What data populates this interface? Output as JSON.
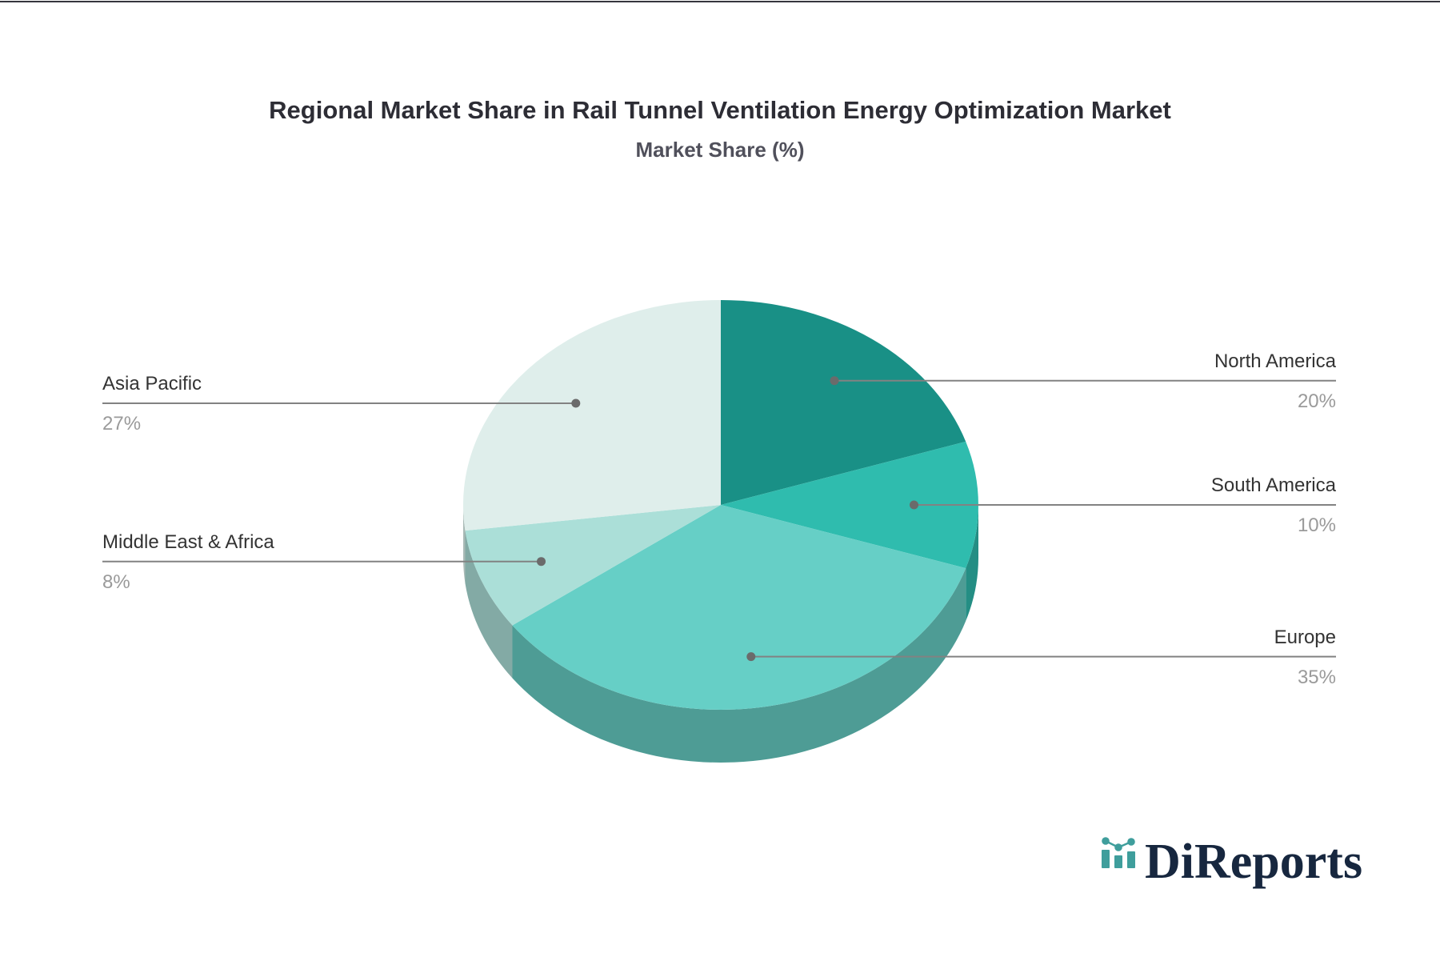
{
  "page": {
    "top_border_color": "#35353d",
    "background": "#ffffff"
  },
  "title": "Regional Market Share in Rail Tunnel Ventilation Energy Optimization Market",
  "subtitle": "Market Share (%)",
  "chart_data": {
    "type": "pie",
    "title": "Regional Market Share in Rail Tunnel Ventilation Energy Optimization Market",
    "subtitle": "Market Share (%)",
    "unit": "%",
    "style": "3d-pie",
    "start_angle_deg": 0,
    "direction": "clockwise",
    "legend_position": "none",
    "label_line_color": "#828282",
    "label_dot_color": "#6b6b6b",
    "label_name_color": "#333333",
    "label_value_color": "#9a9a9a",
    "slices": [
      {
        "label": "North America",
        "value": 20,
        "display": "20%",
        "color": "#199086",
        "side_color": "#136d66",
        "label_side": "right"
      },
      {
        "label": "South America",
        "value": 10,
        "display": "10%",
        "color": "#2fbcae",
        "side_color": "#248e84",
        "label_side": "right"
      },
      {
        "label": "Europe",
        "value": 35,
        "display": "35%",
        "color": "#66cfc6",
        "side_color": "#4e9c95",
        "label_side": "right"
      },
      {
        "label": "Middle East & Africa",
        "value": 8,
        "display": "8%",
        "color": "#abdfd8",
        "side_color": "#83aaa5",
        "label_side": "left"
      },
      {
        "label": "Asia Pacific",
        "value": 27,
        "display": "27%",
        "color": "#dfeeeb",
        "side_color": "#a9bab6",
        "label_side": "left"
      }
    ]
  },
  "logo": {
    "text": "DiReports",
    "text_color": "#17273f",
    "icon_color": "#3f9e9c"
  }
}
